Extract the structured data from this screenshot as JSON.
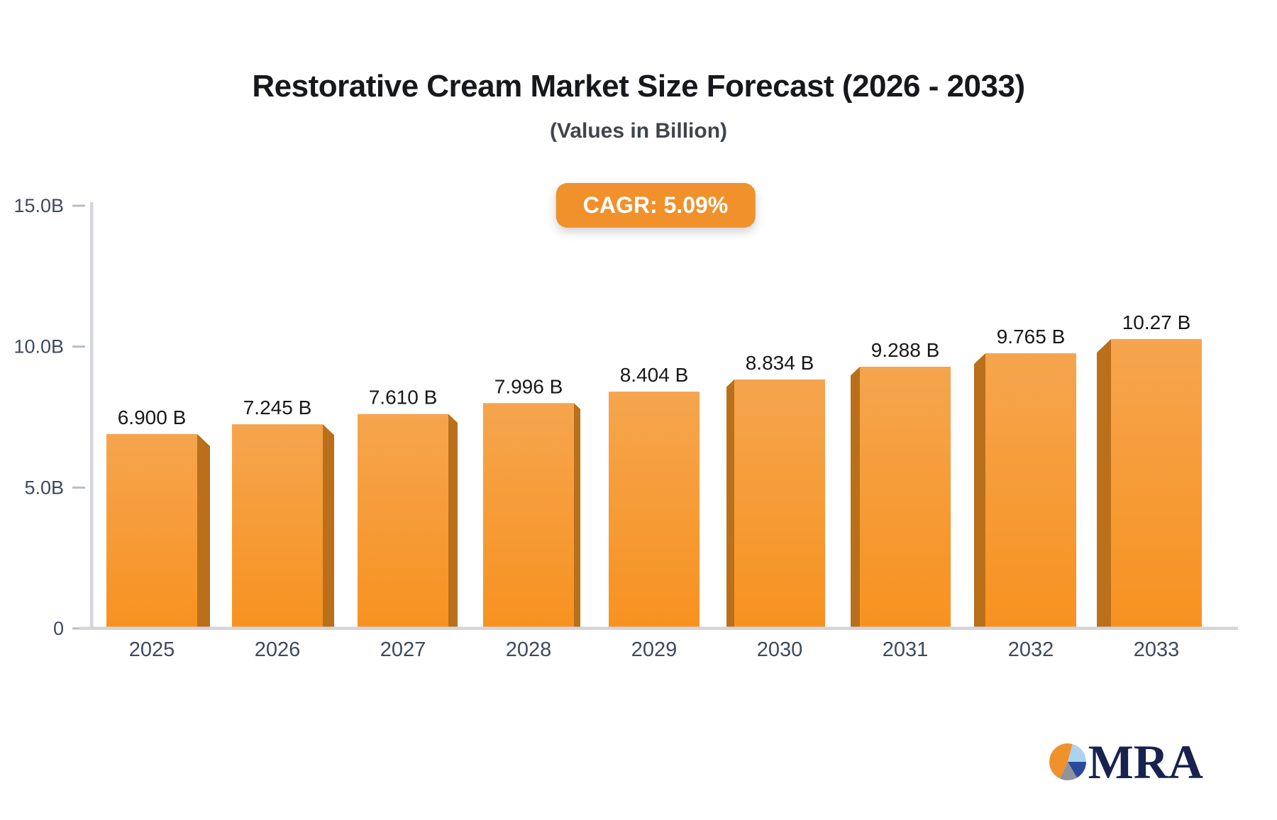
{
  "page": {
    "title": "Restorative Cream Market Size Forecast (2026 - 2033)",
    "subtitle": "(Values in Billion)",
    "cagr_badge": "CAGR: 5.09%"
  },
  "logo": {
    "text": "MRA",
    "pie_slices": [
      {
        "name": "orange-slice",
        "color": "#F0922B",
        "start": 205,
        "end": 375
      },
      {
        "name": "lightblue-slice",
        "color": "#A9D3F0",
        "start": 15,
        "end": 90
      },
      {
        "name": "darkblue-slice",
        "color": "#2A4A9C",
        "start": 90,
        "end": 150
      },
      {
        "name": "gray-slice",
        "color": "#90939C",
        "start": 150,
        "end": 205
      }
    ]
  },
  "colors": {
    "bar_face_top": "#F5A54E",
    "bar_face_bottom": "#F79220",
    "bar_side": "#BA6F1B",
    "badge_bg": "#F0912B",
    "badge_text": "#FFFFFF",
    "axis_line": "#D4D5DA",
    "tick_mark": "#B9BEC7",
    "axis_label": "#3D4A5F",
    "value_label": "#17181A",
    "title_text": "#17181B",
    "subtitle_text": "#3F444D",
    "logo_navy": "#19224E"
  },
  "chart_data": {
    "type": "bar",
    "title": "Restorative Cream Market Size Forecast (2026 - 2033)",
    "subtitle": "(Values in Billion)",
    "cagr": "5.09%",
    "unit": "Billion",
    "categories": [
      "2025",
      "2026",
      "2027",
      "2028",
      "2029",
      "2030",
      "2031",
      "2032",
      "2033"
    ],
    "values": [
      6.9,
      7.245,
      7.61,
      7.996,
      8.404,
      8.834,
      9.288,
      9.765,
      10.27
    ],
    "value_labels": [
      "6.900 B",
      "7.245 B",
      "7.610 B",
      "7.996 B",
      "8.404 B",
      "8.834 B",
      "9.288 B",
      "9.765 B",
      "10.27 B"
    ],
    "xlabel": "",
    "ylabel": "",
    "ylim": [
      0,
      15
    ],
    "y_ticks": [
      {
        "value": 0,
        "label": "0"
      },
      {
        "value": 5,
        "label": "5.0B"
      },
      {
        "value": 10,
        "label": "10.0B"
      },
      {
        "value": 15,
        "label": "15.0B"
      }
    ],
    "grid": false,
    "legend": false,
    "style": "3d-perspective-orange-bars"
  }
}
